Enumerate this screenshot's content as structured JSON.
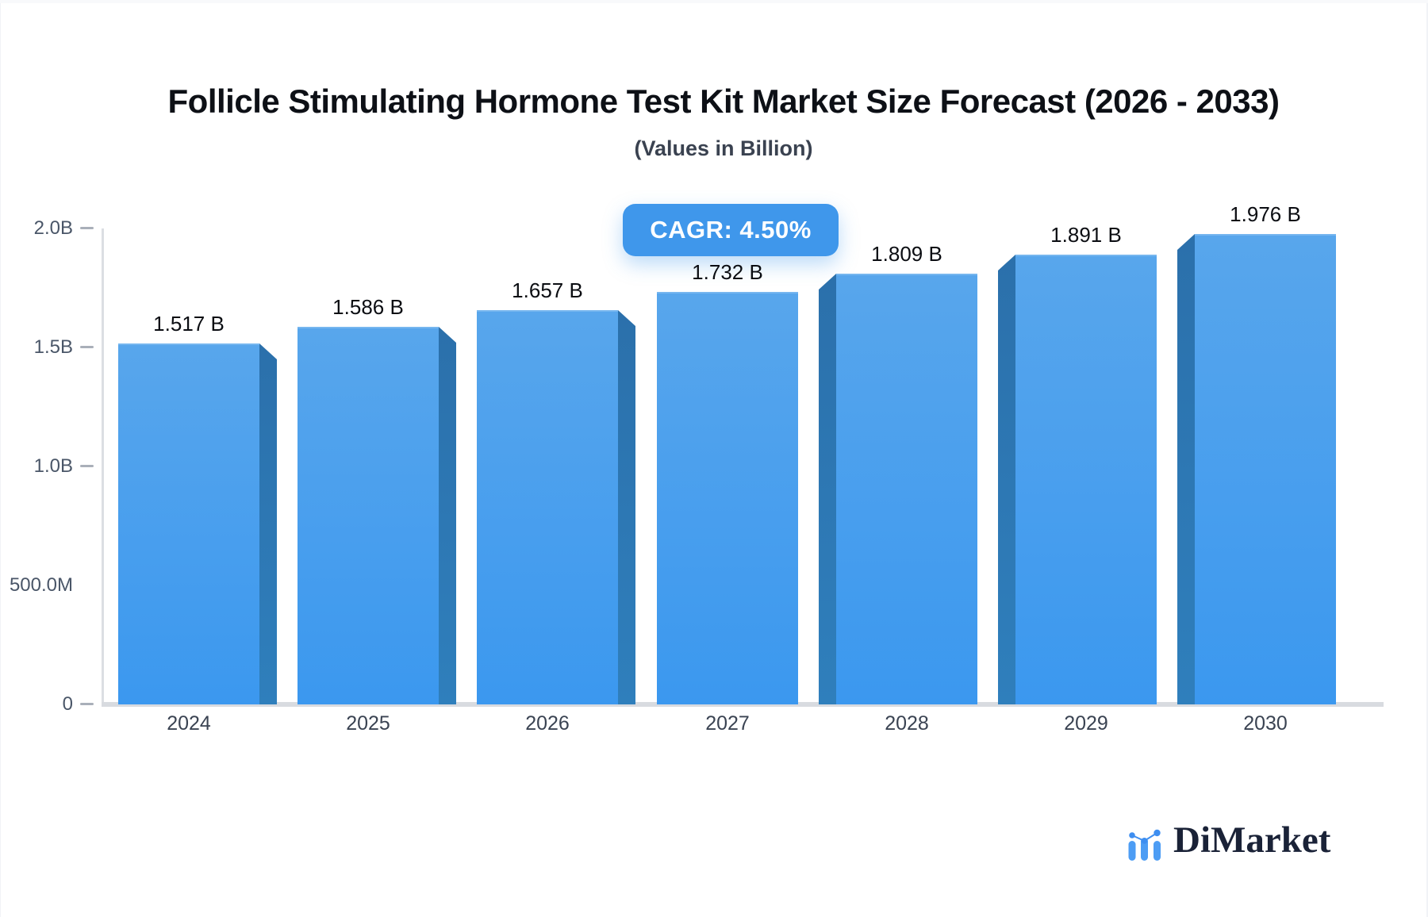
{
  "chart_data": {
    "type": "bar",
    "title": "Follicle Stimulating Hormone Test Kit Market Size Forecast (2026 - 2033)",
    "subtitle": "(Values in Billion)",
    "cagr_badge": "CAGR: 4.50%",
    "categories": [
      "2024",
      "2025",
      "2026",
      "2027",
      "2028",
      "2029",
      "2030"
    ],
    "values": [
      1.517,
      1.586,
      1.657,
      1.732,
      1.809,
      1.891,
      1.976
    ],
    "bar_labels": [
      "1.517 B",
      "1.586 B",
      "1.657 B",
      "1.732 B",
      "1.809 B",
      "1.891 B",
      "1.976 B"
    ],
    "y_ticks": [
      {
        "label": "2.0B",
        "value": 2.0,
        "dash": true
      },
      {
        "label": "1.5B",
        "value": 1.5,
        "dash": true
      },
      {
        "label": "1.0B",
        "value": 1.0,
        "dash": true
      },
      {
        "label": "500.0M",
        "value": 0.5,
        "dash": false
      },
      {
        "label": "0",
        "value": 0,
        "dash": true
      }
    ],
    "ylim": [
      0,
      2.0
    ],
    "grid": false,
    "legend": false,
    "colors": {
      "bar_face_top": "#58A6EC",
      "bar_face_bottom": "#3B98EF",
      "bar_side": "#2E7BB8",
      "badge_bg": "#3F97EB",
      "badge_text": "#FFFFFF",
      "axis_line": "#DBDEE3",
      "baseline": "#D8DBE0",
      "tick_text": "#4A5668",
      "category_text": "#3A4352",
      "bar_label_text": "#0B0D12"
    }
  },
  "branding": {
    "logo_text": "DiMarket",
    "logo_icon": "bar-chart-logo-icon",
    "logo_text_color": "#1A2237",
    "logo_icon_color": "#4D9DF4"
  }
}
